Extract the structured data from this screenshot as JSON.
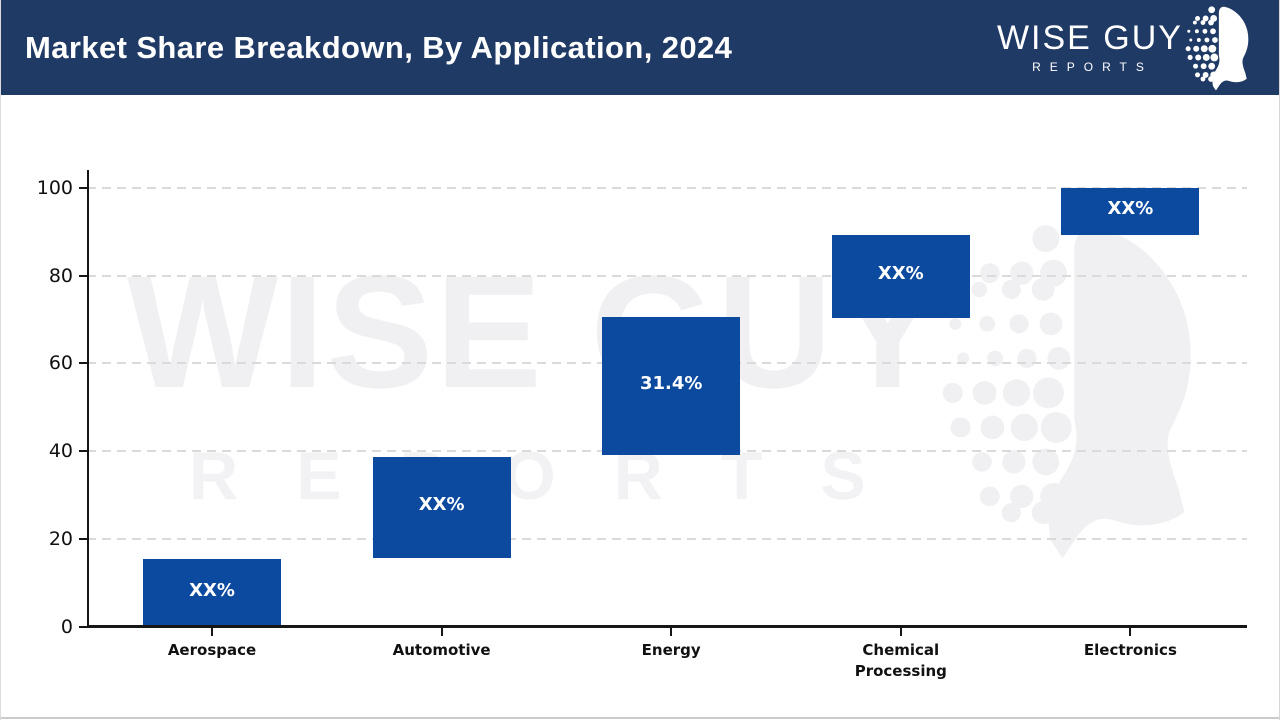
{
  "header": {
    "title": "Market Share Breakdown, By Application, 2024",
    "logo": {
      "line1": "WISE GUY",
      "line2": "REPORTS"
    }
  },
  "watermark": {
    "line1": "WISE GUY",
    "line2": "REPORTS"
  },
  "colors": {
    "header_bg": "#203a66",
    "bar": "#0b4a9f",
    "bar_label": "#ffffff",
    "axis": "#161616",
    "grid": "#dadada",
    "watermark": "#f0f0f2",
    "logo": "#ffffff"
  },
  "chart_data": {
    "type": "bar",
    "subtype": "waterfall-segments",
    "title": "Market Share Breakdown, By Application, 2024",
    "categories": [
      "Aerospace",
      "Automotive",
      "Energy",
      "Chemical Processing",
      "Electronics"
    ],
    "category_label_lines": [
      [
        "Aerospace"
      ],
      [
        "Automotive"
      ],
      [
        "Energy"
      ],
      [
        "Chemical",
        "Processing"
      ],
      [
        "Electronics"
      ]
    ],
    "series": [
      {
        "category": "Aerospace",
        "start": 0,
        "end": 15.5,
        "height_pct": 15.5,
        "label": "XX%"
      },
      {
        "category": "Automotive",
        "start": 15.7,
        "end": 38.8,
        "height_pct": 23.1,
        "label": "XX%"
      },
      {
        "category": "Energy",
        "start": 39.2,
        "end": 70.6,
        "height_pct": 31.4,
        "label": "31.4%"
      },
      {
        "category": "Chemical Processing",
        "start": 70.4,
        "end": 89.3,
        "height_pct": 18.9,
        "label": "XX%"
      },
      {
        "category": "Electronics",
        "start": 89.3,
        "end": 100,
        "height_pct": 10.7,
        "label": "XX%"
      }
    ],
    "yticks": [
      0,
      20,
      40,
      60,
      80,
      100
    ],
    "ylim": [
      0,
      104
    ],
    "xlabel": "",
    "ylabel": "",
    "grid": "dashed-horizontal",
    "legend": "none",
    "bar_color": "#0b4a9f",
    "value_label_color": "#ffffff"
  }
}
